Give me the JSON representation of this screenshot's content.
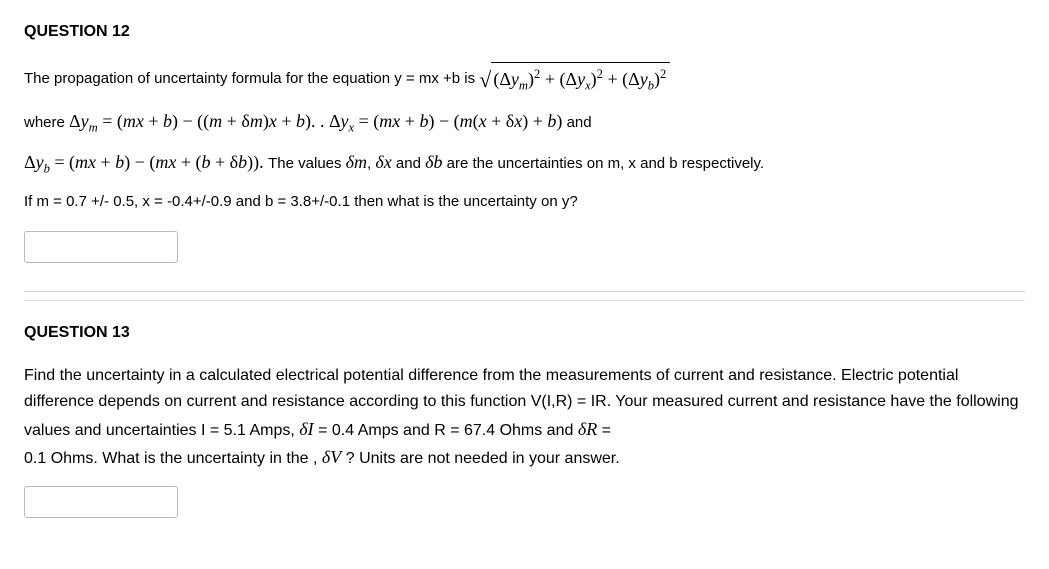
{
  "q12": {
    "heading": "QUESTION 12",
    "intro_text": "The propagation of uncertainty formula for the equation y = mx +b is ",
    "sqrt_expr_html": "(Δ<span class='mi'>y</span><span class='sub'>m</span>)<span class='sup'>2</span> + (Δ<span class='mi'>y</span><span class='sub'>x</span>)<span class='sup'>2</span> + (Δ<span class='mi'>y</span><span class='sub'>b</span>)<span class='sup'>2</span>",
    "where_prefix": "where ",
    "eq1_html": "Δ<span class='mi'>y</span><span class='sub'>m</span> = (<span class='mi'>m</span><span class='mi'>x</span> + <span class='mi'>b</span>) − ((<span class='mi'>m</span> + δ<span class='mi'>m</span>)<span class='mi'>x</span> + <span class='mi'>b</span>). . Δ<span class='mi'>y</span><span class='sub'>x</span> = (<span class='mi'>m</span><span class='mi'>x</span> + <span class='mi'>b</span>) − (<span class='mi'>m</span>(<span class='mi'>x</span> + δ<span class='mi'>x</span>) + <span class='mi'>b</span>)",
    "eq1_tail": " and",
    "eq2_html": "Δ<span class='mi'>y</span><span class='sub'>b</span> = (<span class='mi'>m</span><span class='mi'>x</span> + <span class='mi'>b</span>) − (<span class='mi'>m</span><span class='mi'>x</span> + (<span class='mi'>b</span> + δ<span class='mi'>b</span>)). ",
    "eq2_tail_pre": "The values ",
    "dm": "δm",
    "dx": "δx",
    "db": "δb",
    "eq2_tail_post": " are the uncertainties on m, x and b respectively.",
    "values_line": "If m = 0.7 +/- 0.5, x = -0.4+/-0.9 and b = 3.8+/-0.1 then what is the uncertainty on y?",
    "input_value": ""
  },
  "q13": {
    "heading": "QUESTION 13",
    "body_pre": "Find the uncertainty in a calculated electrical potential difference from the measurements of current and resistance. Electric potential difference depends on current and resistance according to this function V(I,R) = IR. Your measured current and resistance have the following values and uncertainties  I = 5.1 Amps,  ",
    "dI_label": "δI",
    "dI_eq": " =  0.4 Amps and R = 67.4 Ohms and ",
    "dR_label": "δR",
    "dR_eq": " =",
    "line2_pre": " 0.1 Ohms. What is the uncertainty in the , ",
    "dV_label": "δV",
    "line2_post": " ? Units are not needed in your answer.",
    "input_value": ""
  }
}
